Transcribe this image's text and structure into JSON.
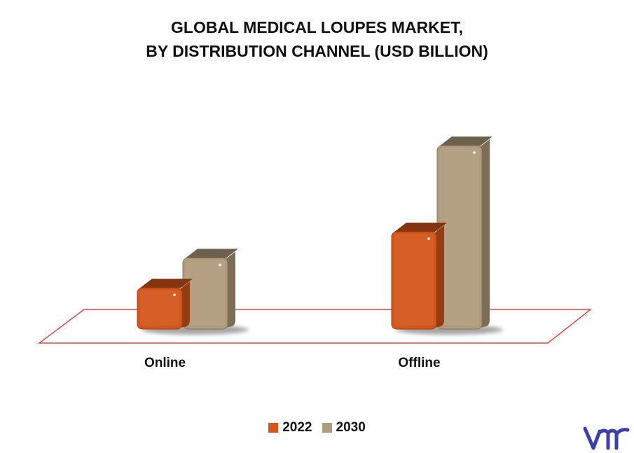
{
  "title_lines": [
    "GLOBAL MEDICAL LOUPES MARKET,",
    "BY DISTRIBUTION CHANNEL (USD BILLION)"
  ],
  "chart_data": {
    "type": "bar",
    "categories": [
      "Online",
      "Offline"
    ],
    "series": [
      {
        "name": "2022",
        "values": [
          0.55,
          1.3
        ],
        "color": "#d4561a"
      },
      {
        "name": "2030",
        "values": [
          0.95,
          2.45
        ],
        "color": "#b09c7c"
      }
    ],
    "ylim": [
      0,
      2.8
    ],
    "grid": false,
    "legend_position": "bottom",
    "style": "3d-bars-on-floor-plane"
  },
  "colors": {
    "floor_outline": "#e02020",
    "logo": "#3b3fa8"
  },
  "logo_icon": "vmr-logo-icon"
}
